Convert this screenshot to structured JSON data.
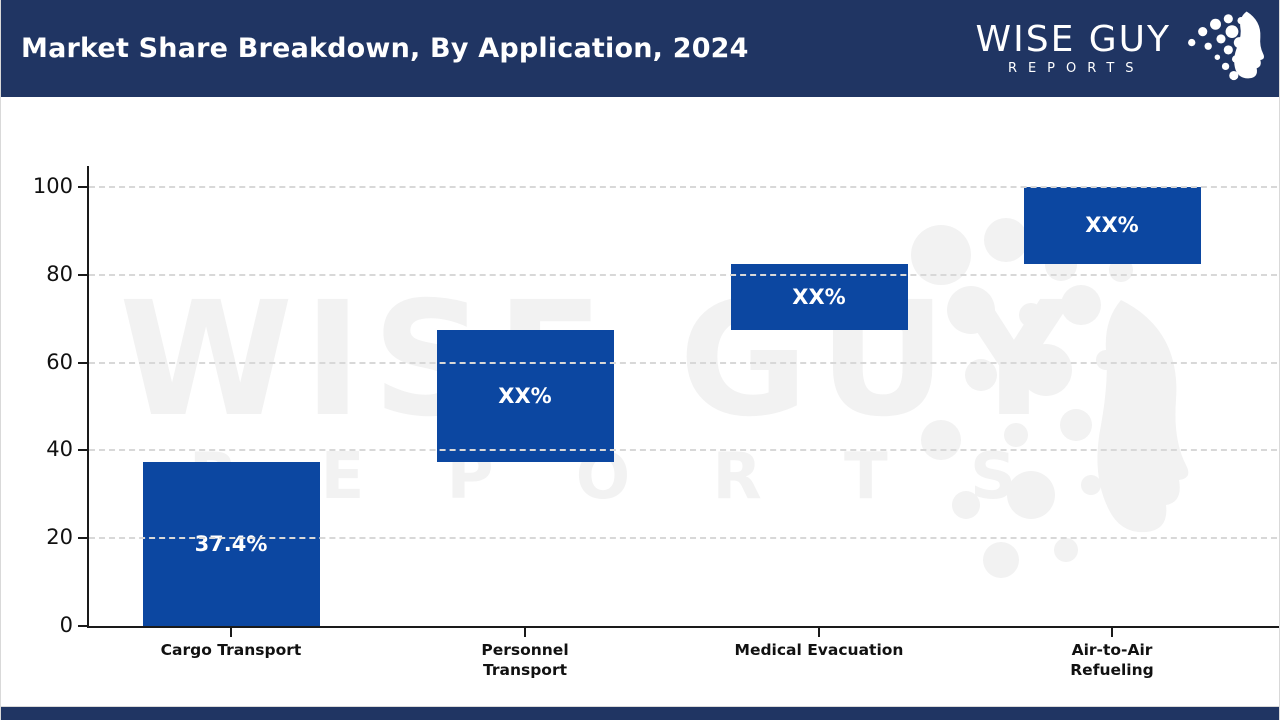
{
  "header": {
    "title": "Market Share Breakdown, By Application, 2024",
    "bg_color": "#203563",
    "logo_line1": "WISE GUY",
    "logo_line2": "REPORTS"
  },
  "watermark": {
    "line1": "WISE GUY",
    "line2": "R E P O R T S"
  },
  "chart_data": {
    "type": "bar",
    "subtype": "floating-segment (stacked breakdown)",
    "title": "Market Share Breakdown, By Application, 2024",
    "categories": [
      "Cargo Transport",
      "Personnel Transport",
      "Medical Evacuation",
      "Air-to-Air Refueling"
    ],
    "categories_display": [
      "Cargo Transport",
      "Personnel\nTransport",
      "Medical Evacuation",
      "Air-to-Air\nRefueling"
    ],
    "segments": [
      {
        "category": "Cargo Transport",
        "start": 0,
        "end": 37.4,
        "value": 37.4,
        "label": "37.4%"
      },
      {
        "category": "Personnel Transport",
        "start": 37.4,
        "end": 67.5,
        "value": 30.1,
        "label": "XX%"
      },
      {
        "category": "Medical Evacuation",
        "start": 67.5,
        "end": 82.5,
        "value": 15.0,
        "label": "XX%"
      },
      {
        "category": "Air-to-Air Refueling",
        "start": 82.5,
        "end": 100,
        "value": 17.5,
        "label": "XX%"
      }
    ],
    "y_ticks": [
      0,
      20,
      40,
      60,
      80,
      100
    ],
    "ylim": [
      0,
      105
    ],
    "grid": "horizontal dashed, drawn over bars",
    "legend": "none",
    "bar_color": "#0c47a1",
    "bar_label_color": "#ffffff",
    "axis_color": "#1a1a1a",
    "gridline_color": "#d8d8d8"
  }
}
